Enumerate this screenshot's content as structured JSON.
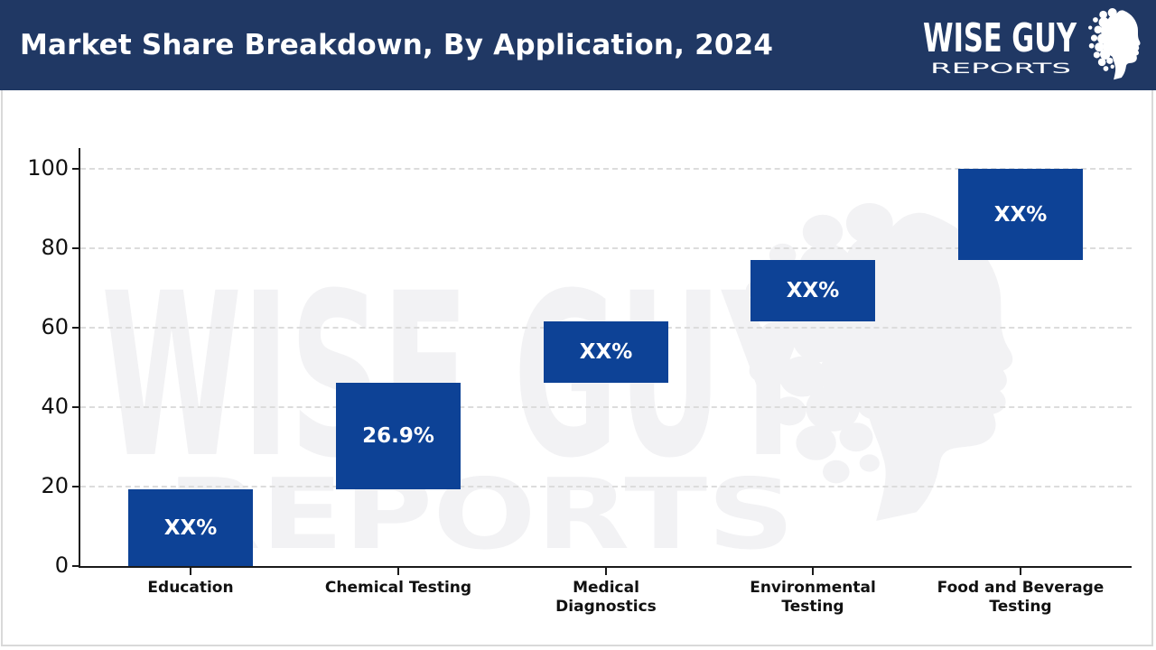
{
  "header": {
    "title": "Market Share Breakdown, By Application, 2024",
    "logo_line1": "WISE GUY",
    "logo_line2": "REPORTS"
  },
  "watermark": {
    "line1": "WISE GUY",
    "line2": "REPORTS"
  },
  "chart_data": {
    "type": "bar",
    "variant": "waterfall",
    "title": "Market Share Breakdown, By Application, 2024",
    "categories": [
      "Education",
      "Chemical Testing",
      "Medical Diagnostics",
      "Environmental Testing",
      "Food and Beverage Testing"
    ],
    "category_lines": [
      [
        "Education"
      ],
      [
        "Chemical Testing"
      ],
      [
        "Medical",
        "Diagnostics"
      ],
      [
        "Environmental",
        "Testing"
      ],
      [
        "Food and Beverage",
        "Testing"
      ]
    ],
    "series": [
      {
        "name": "Market share (%)",
        "segments": [
          {
            "category": "Education",
            "start": 0,
            "end": 19.3,
            "label": "XX%"
          },
          {
            "category": "Chemical Testing",
            "start": 19.3,
            "end": 46.2,
            "label": "26.9%"
          },
          {
            "category": "Medical Diagnostics",
            "start": 46.2,
            "end": 61.7,
            "label": "XX%"
          },
          {
            "category": "Environmental Testing",
            "start": 61.7,
            "end": 77.0,
            "label": "XX%"
          },
          {
            "category": "Food and Beverage Testing",
            "start": 77.0,
            "end": 100.0,
            "label": "XX%"
          }
        ]
      }
    ],
    "ylim": [
      0,
      100
    ],
    "yticks": [
      0,
      20,
      40,
      60,
      80,
      100
    ],
    "grid": "horizontal-dashed",
    "legend": "none",
    "colors": {
      "bar": "#0d4296",
      "header_bg": "#203864",
      "grid": "#dcdcdc",
      "watermark": "#f2f2f4",
      "axis": "#1a1a1a",
      "bar_label_text": "#ffffff"
    }
  }
}
